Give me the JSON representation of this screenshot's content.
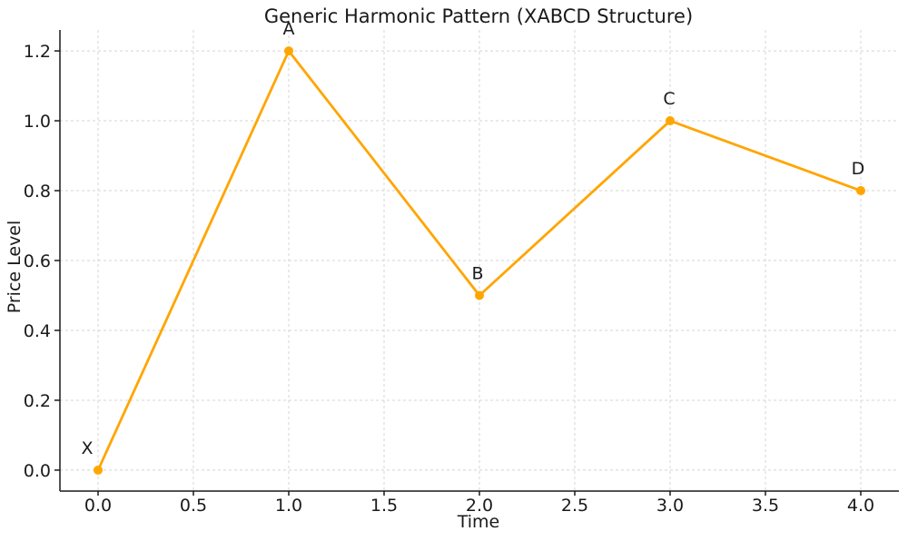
{
  "chart_data": {
    "type": "line",
    "title": "Generic Harmonic Pattern (XABCD Structure)",
    "xlabel": "Time",
    "ylabel": "Price Level",
    "xlim": [
      -0.2,
      4.2
    ],
    "ylim": [
      -0.06,
      1.26
    ],
    "grid": true,
    "legend": "none",
    "series": [
      {
        "name": "xabcd-pattern",
        "color": "#FFA500",
        "marker": "circle",
        "points": [
          {
            "label": "X",
            "x": 0.0,
            "y": 0.0,
            "label_dx": -12
          },
          {
            "label": "A",
            "x": 1.0,
            "y": 1.2,
            "label_dx": 0
          },
          {
            "label": "B",
            "x": 2.0,
            "y": 0.5,
            "label_dx": -2
          },
          {
            "label": "C",
            "x": 3.0,
            "y": 1.0,
            "label_dx": -1
          },
          {
            "label": "D",
            "x": 4.0,
            "y": 0.8,
            "label_dx": -3
          }
        ]
      }
    ],
    "xticks": [
      {
        "v": 0.0,
        "label": "0.0"
      },
      {
        "v": 0.5,
        "label": "0.5"
      },
      {
        "v": 1.0,
        "label": "1.0"
      },
      {
        "v": 1.5,
        "label": "1.5"
      },
      {
        "v": 2.0,
        "label": "2.0"
      },
      {
        "v": 2.5,
        "label": "2.5"
      },
      {
        "v": 3.0,
        "label": "3.0"
      },
      {
        "v": 3.5,
        "label": "3.5"
      },
      {
        "v": 4.0,
        "label": "4.0"
      }
    ],
    "yticks": [
      {
        "v": 0.0,
        "label": "0.0"
      },
      {
        "v": 0.2,
        "label": "0.2"
      },
      {
        "v": 0.4,
        "label": "0.4"
      },
      {
        "v": 0.6,
        "label": "0.6"
      },
      {
        "v": 0.8,
        "label": "0.8"
      },
      {
        "v": 1.0,
        "label": "1.0"
      },
      {
        "v": 1.2,
        "label": "1.2"
      }
    ],
    "colors": {
      "line": "#FFA500",
      "marker": "#FFA500",
      "grid": "#d4d4d4",
      "spine": "#1a1a1a",
      "tick": "#1a1a1a",
      "text": "#1a1a1a"
    }
  }
}
